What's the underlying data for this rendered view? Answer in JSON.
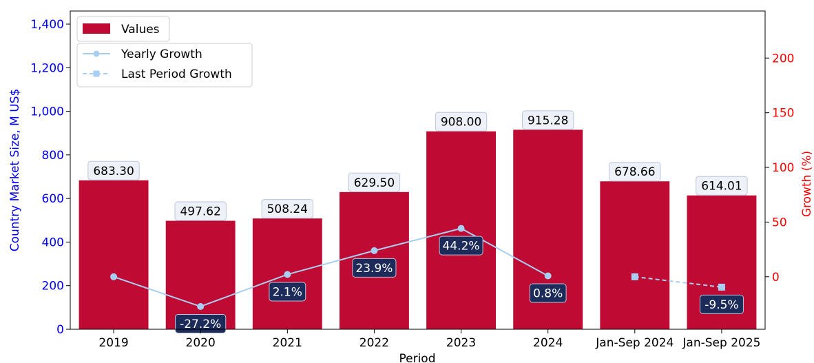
{
  "chart_data": {
    "type": "bar",
    "categories": [
      "2019",
      "2020",
      "2021",
      "2022",
      "2023",
      "2024",
      "Jan-Sep 2024",
      "Jan-Sep 2025"
    ],
    "values": [
      683.3,
      497.62,
      508.24,
      629.5,
      908.0,
      915.28,
      678.66,
      614.01
    ],
    "value_labels": [
      "683.30",
      "497.62",
      "508.24",
      "629.50",
      "908.00",
      "915.28",
      "678.66",
      "614.01"
    ],
    "xlabel": "Period",
    "ylabel": "Country Market Size, M US$",
    "y2label": "Growth (%)",
    "ylim": [
      0,
      1460
    ],
    "y2lim": [
      -48,
      243
    ],
    "yticks": [
      0,
      200,
      400,
      600,
      800,
      1000,
      1200,
      1400
    ],
    "ytick_labels": [
      "0",
      "200",
      "400",
      "600",
      "800",
      "1,000",
      "1,200",
      "1,400"
    ],
    "y2ticks": [
      0,
      50,
      100,
      150,
      200
    ],
    "y2tick_labels": [
      "0",
      "50",
      "100",
      "150",
      "200"
    ],
    "series": [
      {
        "name": "Values",
        "kind": "bar",
        "color": "#bf0a33"
      },
      {
        "name": "Yearly Growth",
        "kind": "line",
        "style": "solid",
        "marker": "circle",
        "color": "#a8cff2",
        "points": [
          {
            "i": 0,
            "y": 0
          },
          {
            "i": 1,
            "y": -27.2
          },
          {
            "i": 2,
            "y": 2.1
          },
          {
            "i": 3,
            "y": 23.9
          },
          {
            "i": 4,
            "y": 44.2
          },
          {
            "i": 5,
            "y": 0.8
          }
        ],
        "labels": [
          {
            "i": 1,
            "text": "-27.2%"
          },
          {
            "i": 2,
            "text": "2.1%"
          },
          {
            "i": 3,
            "text": "23.9%"
          },
          {
            "i": 4,
            "text": "44.2%"
          },
          {
            "i": 5,
            "text": "0.8%"
          }
        ]
      },
      {
        "name": "Last Period Growth",
        "kind": "line",
        "style": "dashed",
        "marker": "square",
        "color": "#a8cff2",
        "points": [
          {
            "i": 6,
            "y": 0
          },
          {
            "i": 7,
            "y": -9.5
          }
        ],
        "labels": [
          {
            "i": 7,
            "text": "-9.5%"
          }
        ]
      }
    ],
    "legend_position": "top-left",
    "grid": false,
    "colors": {
      "left_axis": "#0000ff",
      "right_axis": "#ff0000",
      "value_box": "#eef2f8",
      "growth_box": "#1d2b5a"
    }
  }
}
